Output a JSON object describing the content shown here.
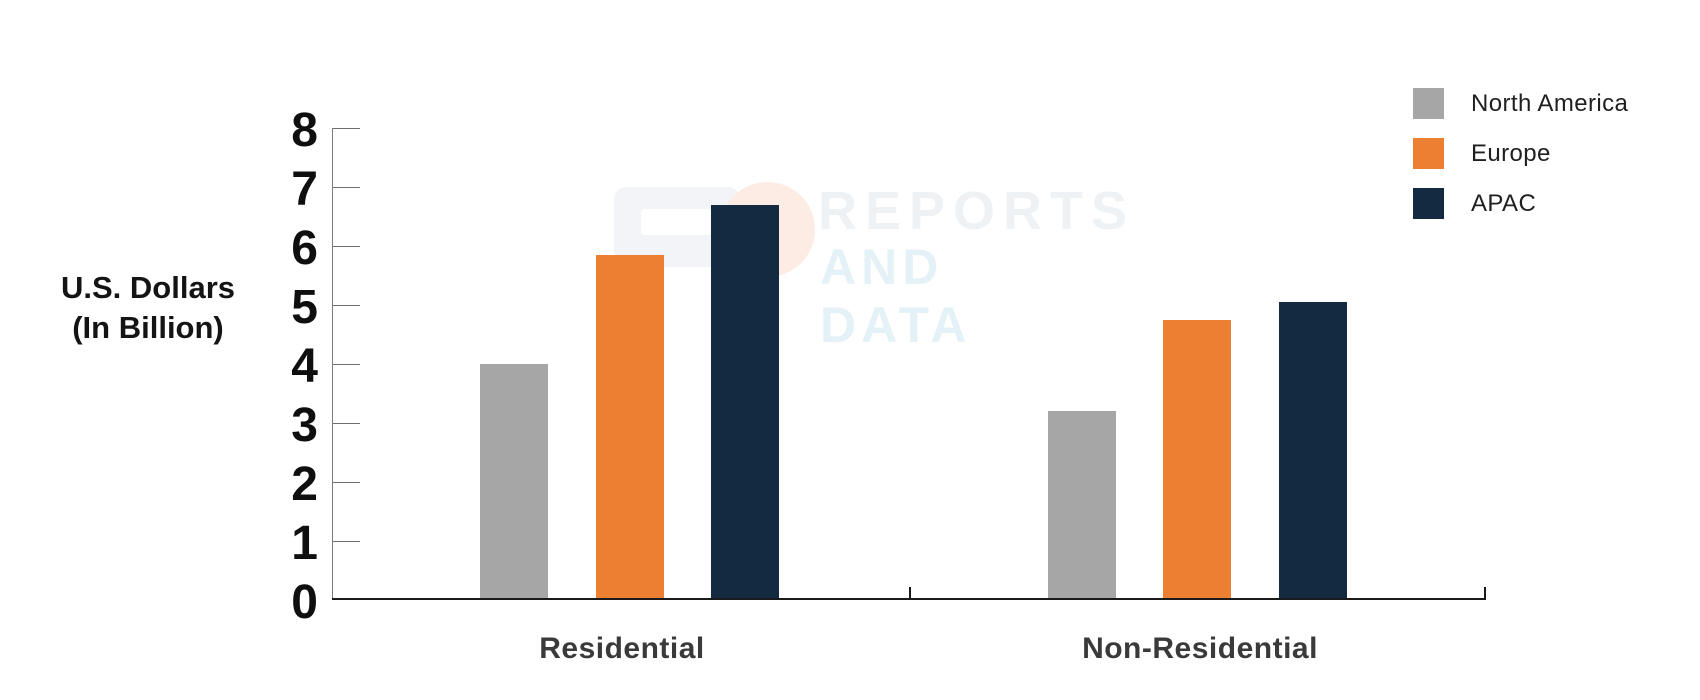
{
  "chart_data": {
    "type": "bar",
    "title": "",
    "ylabel": "U.S. Dollars (In Billion)",
    "ylabel_lines": [
      "U.S. Dollars",
      "(In Billion)"
    ],
    "xlabel": "",
    "categories": [
      "Residential",
      "Non-Residential"
    ],
    "series": [
      {
        "name": "North America",
        "color": "#a6a6a6",
        "values": [
          4.0,
          3.2
        ]
      },
      {
        "name": "Europe",
        "color": "#ec7f31",
        "values": [
          5.85,
          4.75
        ]
      },
      {
        "name": "APAC",
        "color": "#132a41",
        "values": [
          6.7,
          5.05
        ]
      }
    ],
    "ylim": [
      0,
      8
    ],
    "ytick_step": 1,
    "ytick_labels": [
      "0",
      "1",
      "2",
      "3",
      "4",
      "5",
      "6",
      "7",
      "8"
    ],
    "grid": false,
    "legend_position": "top-right"
  },
  "legend": {
    "items": [
      {
        "label": "North America",
        "color": "#a6a6a6"
      },
      {
        "label": "Europe",
        "color": "#ec7f31"
      },
      {
        "label": "APAC",
        "color": "#132a41"
      }
    ]
  },
  "watermark": {
    "line1": "REPORTS",
    "line2": "AND DATA",
    "logo": "reports-and-data-logo"
  },
  "colors": {
    "axis_line": "#7a7a7a",
    "baseline": "#1a1a1a",
    "tick_text": "#0f0f0f",
    "category_text": "#3a3a3a",
    "watermark_text1": "#eff2f5",
    "watermark_text2": "#e4f2f8"
  }
}
